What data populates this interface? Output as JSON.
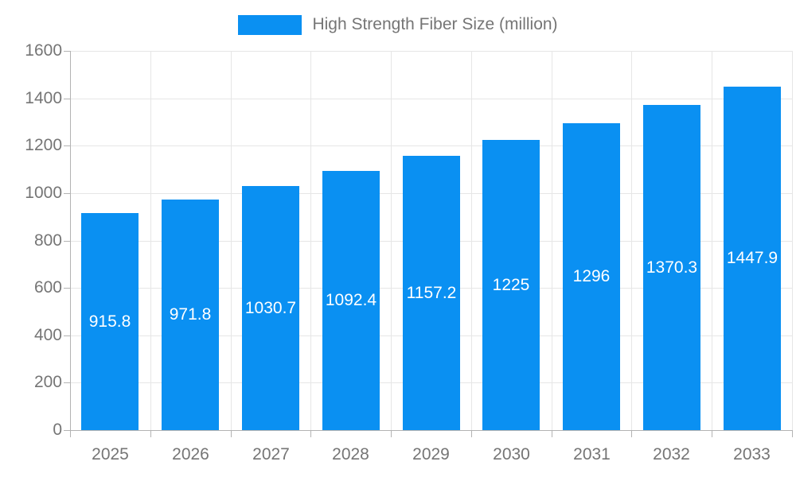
{
  "legend": {
    "label": "High Strength Fiber Size (million)",
    "swatch_color": "#0a90f2"
  },
  "chart_data": {
    "type": "bar",
    "title": "High Strength Fiber Size (million)",
    "categories": [
      "2025",
      "2026",
      "2027",
      "2028",
      "2029",
      "2030",
      "2031",
      "2032",
      "2033"
    ],
    "series": [
      {
        "name": "High Strength Fiber Size (million)",
        "values": [
          915.8,
          971.8,
          1030.7,
          1092.4,
          1157.2,
          1225,
          1296,
          1370.3,
          1447.9
        ]
      }
    ],
    "xlabel": "",
    "ylabel": "",
    "ylim": [
      0,
      1600
    ],
    "yticks": [
      0,
      200,
      400,
      600,
      800,
      1000,
      1200,
      1400,
      1600
    ],
    "grid": true,
    "legend_position": "top",
    "bar_color": "#0a90f2",
    "value_label_color": "#ffffff",
    "axis_text_color": "#757575",
    "gridline_color": "#e6e6e6",
    "axis_line_color": "#b3b3b3"
  }
}
